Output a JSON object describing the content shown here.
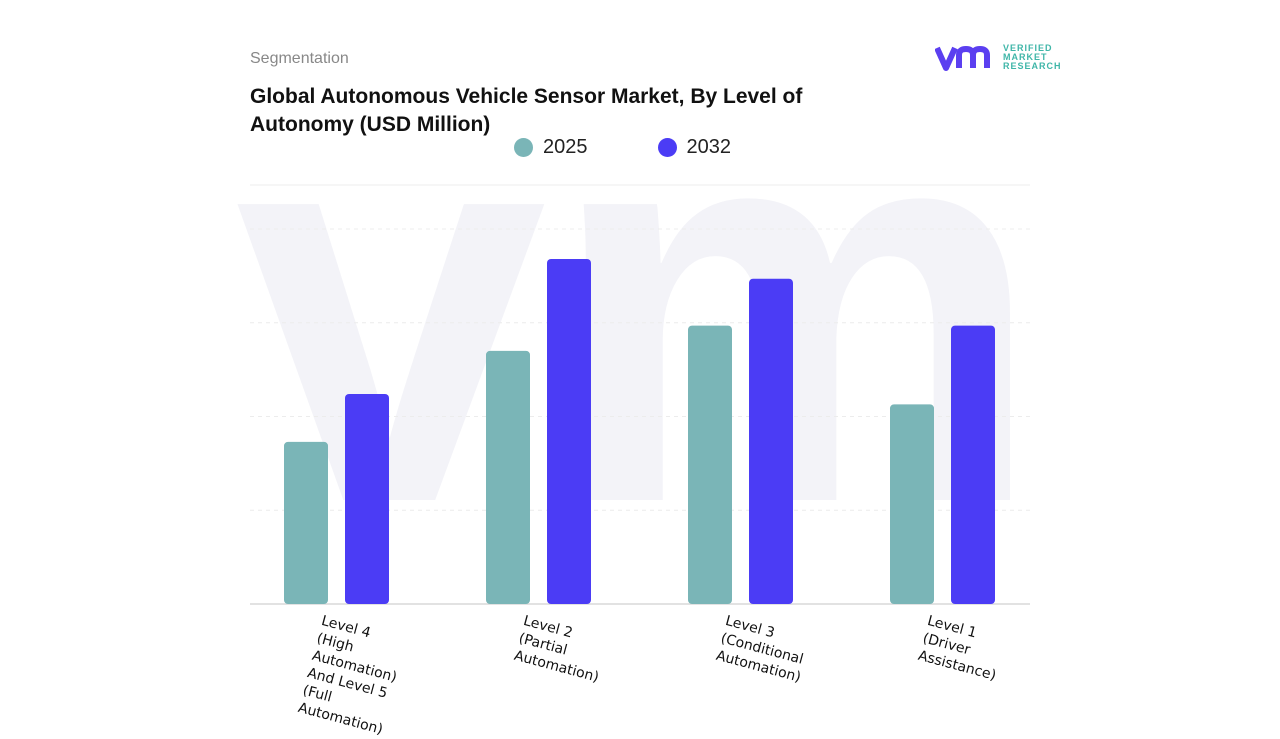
{
  "header": {
    "segment_label": "Segmentation",
    "title": "Global Autonomous Vehicle Sensor Market, By Level of Autonomy (USD Million)"
  },
  "logo": {
    "text": "VERIFIED MARKET RESEARCH",
    "line1": "VERIFIED",
    "line2": "MARKET",
    "line3": "RESEARCH"
  },
  "chart_data": {
    "type": "bar",
    "title": "Global Autonomous Vehicle Sensor Market, By Level of Autonomy (USD Million)",
    "categories": [
      "Level 4 (High\nAutomation)\nAnd Level 5\n(Full\nAutomation)",
      "Level 2\n(Partial\nAutomation)",
      "Level 3\n(Conditional\nAutomation)",
      "Level 1 (Driver\nAssistance)"
    ],
    "series": [
      {
        "name": "2025",
        "color": "#7ab5b7",
        "values": [
          1.73,
          2.7,
          2.97,
          2.13
        ]
      },
      {
        "name": "2032",
        "color": "#4b3cf5",
        "values": [
          2.24,
          3.68,
          3.47,
          2.97
        ]
      }
    ],
    "ylim": [
      0,
      4
    ],
    "grid": true,
    "legend": "top",
    "xlabel": "",
    "ylabel": ""
  }
}
